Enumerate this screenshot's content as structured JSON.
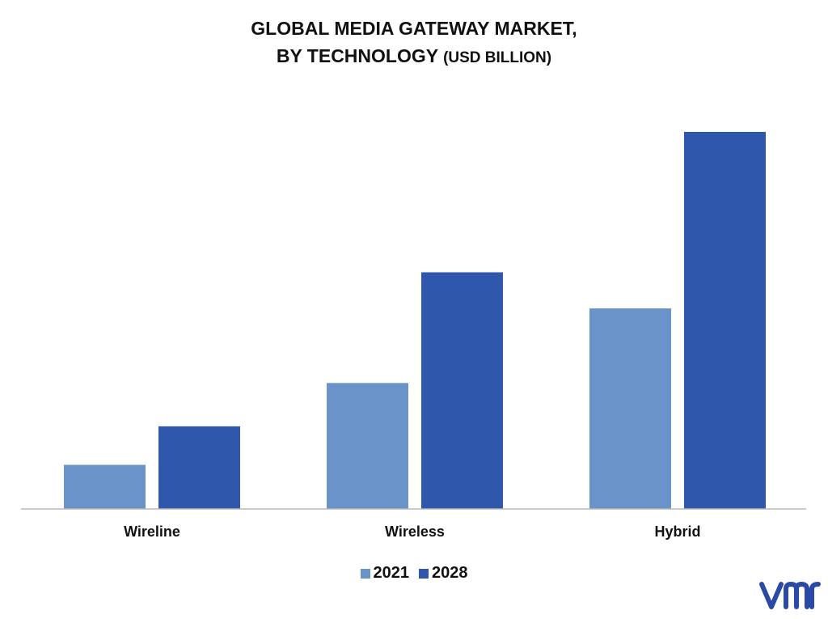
{
  "title": {
    "line1": "GLOBAL MEDIA GATEWAY MARKET,",
    "line2": "BY TECHNOLOGY",
    "unit": "(USD BILLION)"
  },
  "colors": {
    "series_2021": "#6a93c9",
    "series_2028": "#2f58ad",
    "axis": "#b8b8b8",
    "logo": "#2b4aa8"
  },
  "logo": {
    "name": "vmr-logo-icon"
  },
  "chart_data": {
    "type": "bar",
    "title": "GLOBAL MEDIA GATEWAY MARKET, BY TECHNOLOGY (USD BILLION)",
    "categories": [
      "Wireline",
      "Wireless",
      "Hybrid"
    ],
    "series": [
      {
        "name": "2021",
        "values": [
          0.55,
          1.57,
          2.5
        ]
      },
      {
        "name": "2028",
        "values": [
          1.03,
          2.95,
          4.7
        ]
      }
    ],
    "ylim": [
      0,
      5
    ],
    "xlabel": "",
    "ylabel": "",
    "grid": false,
    "legend": "bottom-center"
  }
}
